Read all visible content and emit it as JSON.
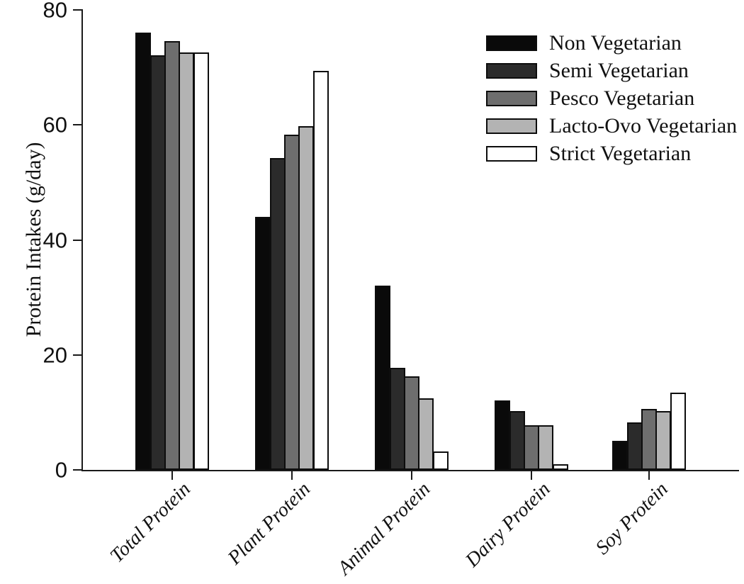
{
  "chart_data": {
    "type": "bar",
    "title": "",
    "xlabel": "",
    "ylabel": "Protein Intakes (g/day)",
    "ylim": [
      0,
      80
    ],
    "yticks": [
      0,
      20,
      40,
      60,
      80
    ],
    "grid": false,
    "legend_position": "top-right",
    "categories": [
      "Total Protein",
      "Plant Protein",
      "Animal Protein",
      "Dairy Protein",
      "Soy Protein"
    ],
    "series": [
      {
        "name": "Non Vegetarian",
        "color": "#0a0a0a",
        "values": [
          75.8,
          43.8,
          31.8,
          11.8,
          4.8
        ]
      },
      {
        "name": "Semi Vegetarian",
        "color": "#2b2b2b",
        "values": [
          71.9,
          54.0,
          17.5,
          10.0,
          8.0
        ]
      },
      {
        "name": "Pesco Vegetarian",
        "color": "#6e6e6e",
        "values": [
          74.3,
          58.0,
          16.0,
          7.5,
          10.3
        ]
      },
      {
        "name": "Lacto-Ovo Vegetarian",
        "color": "#b3b3b3",
        "values": [
          72.4,
          59.5,
          12.2,
          7.5,
          10.0
        ]
      },
      {
        "name": "Strict Vegetarian",
        "color": "#ffffff",
        "values": [
          72.3,
          69.2,
          3.0,
          0.8,
          13.2
        ]
      }
    ]
  }
}
